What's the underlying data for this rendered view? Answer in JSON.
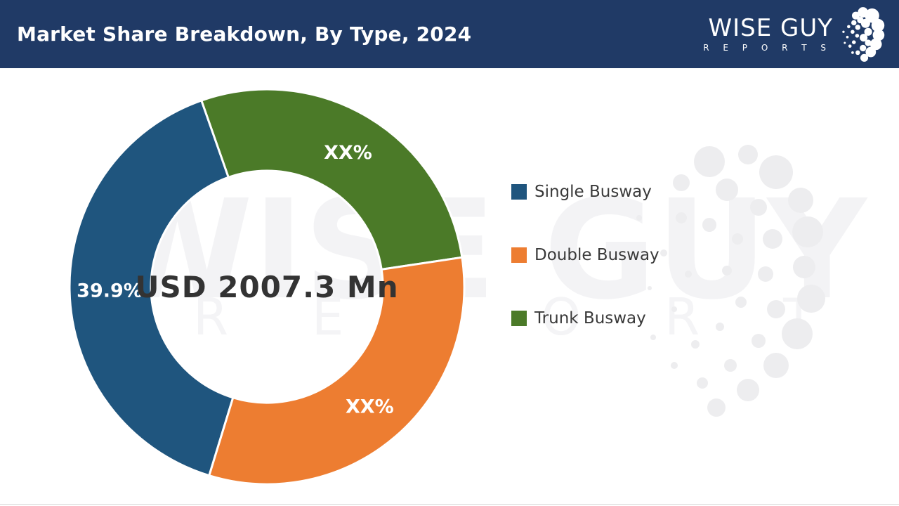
{
  "header": {
    "title": "Market Share Breakdown, By Type, 2024",
    "logo": {
      "line1": "WISE GUY",
      "line2": "R E P O R T S"
    }
  },
  "chart_data": {
    "type": "donut",
    "title": "Market Share Breakdown, By Type, 2024",
    "center_label": "USD 2007.3 Mn",
    "start_angle_deg": 197,
    "series": [
      {
        "name": "Single Busway",
        "label": "39.9%",
        "pct": 39.9,
        "color": "#1F557E"
      },
      {
        "name": "Trunk Busway",
        "label": "XX%",
        "pct": 28.0,
        "color": "#4B7A28"
      },
      {
        "name": "Double Busway",
        "label": "XX%",
        "pct": 32.1,
        "color": "#ED7D31"
      }
    ],
    "legend_position": "right",
    "label_color": "#FFFFFF",
    "center_label_color": "#333333"
  },
  "legend": {
    "items": [
      {
        "label": "Single Busway",
        "color": "#1F557E"
      },
      {
        "label": "Double Busway",
        "color": "#ED7D31"
      },
      {
        "label": "Trunk Busway",
        "color": "#4B7A28"
      }
    ]
  },
  "colors": {
    "header_bg": "#203A66",
    "watermark": "#F3F3F5"
  },
  "watermark": {
    "line1": "WISE GUY",
    "line2": "R E P O R T S"
  }
}
